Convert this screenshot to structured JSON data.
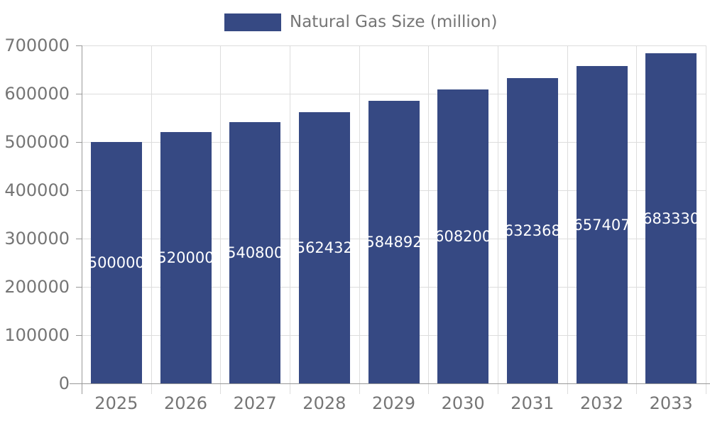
{
  "chart_data": {
    "type": "bar",
    "title": "Natural Gas Size (million)",
    "legend": {
      "label": "Natural Gas Size (million)",
      "position": "top-center"
    },
    "categories": [
      "2025",
      "2026",
      "2027",
      "2028",
      "2029",
      "2030",
      "2031",
      "2032",
      "2033"
    ],
    "series": [
      {
        "name": "Natural Gas Size (million)",
        "values": [
          500000,
          520000,
          540800,
          562432,
          584892,
          608200,
          632368,
          657407,
          683330
        ]
      }
    ],
    "bar_labels": [
      "500000",
      "520000",
      "540800",
      "562432",
      "584892",
      "608200",
      "632368",
      "657407",
      "683330"
    ],
    "xlabel": "",
    "ylabel": "",
    "ylim": [
      0,
      700000
    ],
    "y_ticks": [
      0,
      100000,
      200000,
      300000,
      400000,
      500000,
      600000,
      700000
    ],
    "y_tick_labels": [
      "0",
      "100000",
      "200000",
      "300000",
      "400000",
      "500000",
      "600000",
      "700000"
    ],
    "grid": true,
    "legend_position": "top-center",
    "colors": {
      "bar": "#364983",
      "bar_label": "#ffffff",
      "axis_label": "#757575",
      "gridline": "#dddddd",
      "axis_line": "#999999",
      "background": "#ffffff"
    }
  }
}
